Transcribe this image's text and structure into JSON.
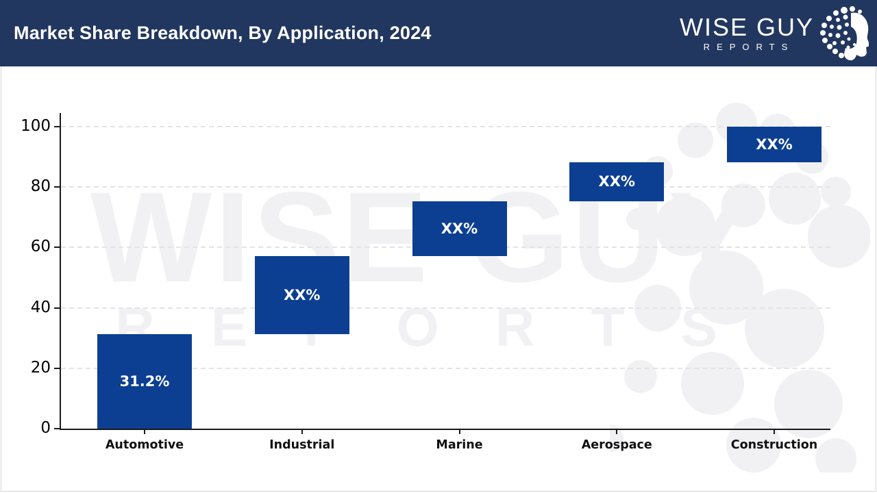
{
  "header": {
    "title": "Market Share Breakdown, By Application, 2024",
    "bg_color": "#22375f",
    "logo": {
      "line1": "WISE GUY",
      "line2": "REPORTS"
    }
  },
  "watermark": {
    "line1": "WISE GUY",
    "line2": "REPORTS"
  },
  "chart_data": {
    "type": "bar",
    "subtype": "waterfall",
    "title": "Market Share Breakdown, By Application, 2024",
    "categories": [
      "Automotive",
      "Industrial",
      "Marine",
      "Aerospace",
      "Construction"
    ],
    "segments": [
      {
        "category": "Automotive",
        "start": 0,
        "end": 31.2,
        "label": "31.2%"
      },
      {
        "category": "Industrial",
        "start": 31.2,
        "end": 57.2,
        "label": "XX%"
      },
      {
        "category": "Marine",
        "start": 57.2,
        "end": 75.3,
        "label": "XX%"
      },
      {
        "category": "Aerospace",
        "start": 75.3,
        "end": 88.3,
        "label": "XX%"
      },
      {
        "category": "Construction",
        "start": 88.3,
        "end": 100,
        "label": "XX%"
      }
    ],
    "xlabel": "",
    "ylabel": "",
    "ylim": [
      0,
      100
    ],
    "yticks": [
      0,
      20,
      40,
      60,
      80,
      100
    ],
    "grid": "horizontal-dashed",
    "legend": "none",
    "bar_color": "#0c3f92",
    "bar_label_color": "#ffffff",
    "axis_color": "#1a1a1a"
  }
}
